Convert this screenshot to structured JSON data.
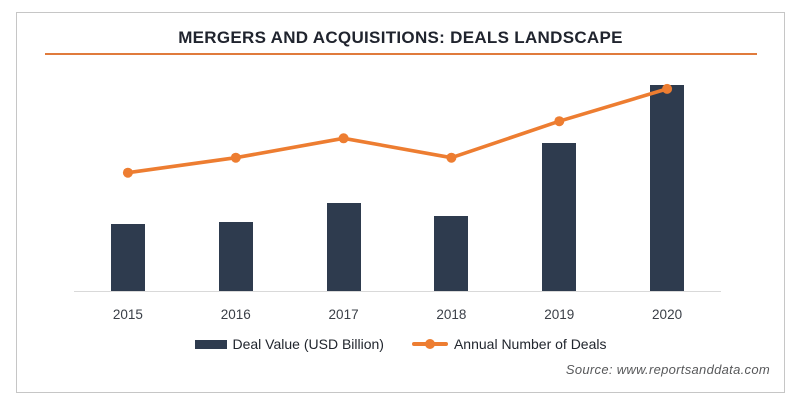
{
  "header": {
    "title": "MERGERS AND ACQUISITIONS: DEALS LANDSCAPE"
  },
  "chart_data": {
    "type": "combo",
    "title": "MERGERS AND ACQUISITIONS: DEALS LANDSCAPE",
    "categories": [
      "2015",
      "2016",
      "2017",
      "2018",
      "2019",
      "2020"
    ],
    "series": [
      {
        "name": "Deal Value (USD Billion)",
        "type": "bar",
        "color": "#2e3b4e",
        "values": [
          31,
          32,
          41,
          35,
          69,
          96
        ]
      },
      {
        "name": "Annual Number of Deals",
        "type": "line",
        "color": "#ed7d31",
        "values": [
          55,
          62,
          71,
          62,
          79,
          94
        ]
      }
    ],
    "xlabel": "",
    "ylabel": "",
    "ylim": [
      0,
      100
    ],
    "y_axis_shown": false,
    "data_labels_shown": false,
    "note": "No y-axis ticks or data labels are rendered; series values estimated on a 0-100 relative scale of plot height",
    "grid": false,
    "legend_position": "bottom"
  },
  "footer": {
    "source": "Source: www.reportsanddata.com"
  },
  "colors": {
    "bar": "#2e3b4e",
    "line": "#ed7d31",
    "title_divider": "#e07b3c",
    "frame_border": "#c6c6c6",
    "axis_line": "#d9d9d9",
    "title_text": "#20242e",
    "source_text": "#58595b"
  }
}
